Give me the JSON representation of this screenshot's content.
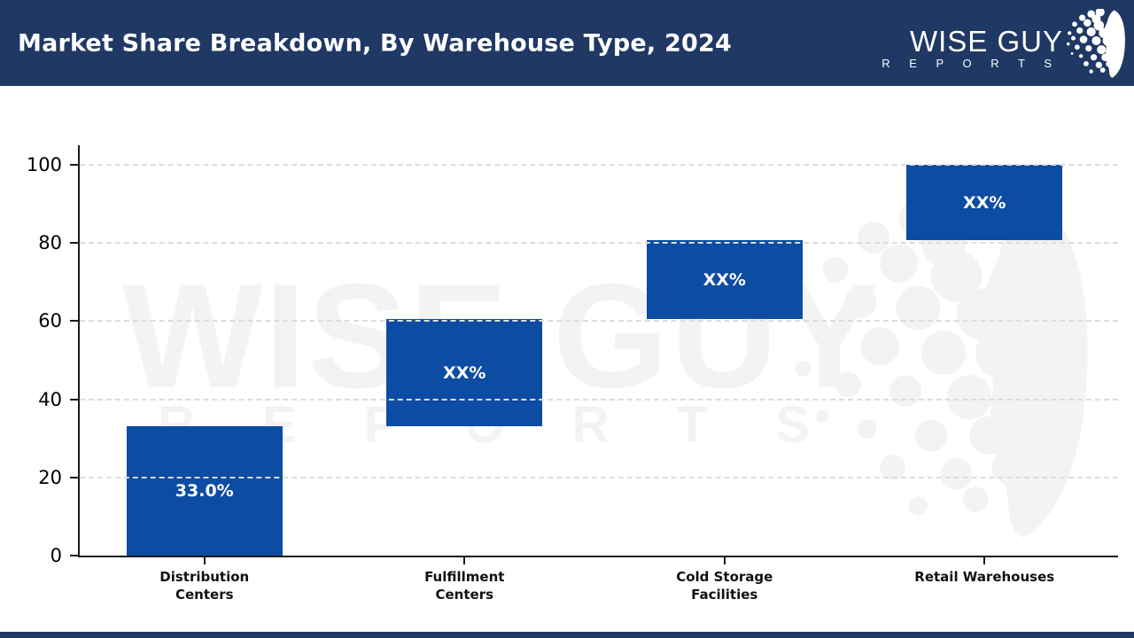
{
  "header": {
    "title": "Market Share Breakdown, By Warehouse Type, 2024",
    "logo": {
      "name": "WISE GUY",
      "sub": "R E P O R T S"
    }
  },
  "watermark": {
    "line1": "WISE GUY",
    "line2": "R E P O R T S"
  },
  "chart_data": {
    "type": "bar",
    "subtype": "waterfall",
    "title": "Market Share Breakdown, By Warehouse Type, 2024",
    "categories": [
      [
        "Distribution",
        "Centers"
      ],
      [
        "Fulfillment",
        "Centers"
      ],
      [
        "Cold Storage",
        "Facilities"
      ],
      [
        "Retail Warehouses"
      ]
    ],
    "segments": [
      {
        "label": "33.0%",
        "start": 0,
        "end": 33
      },
      {
        "label": "XX%",
        "start": 33,
        "end": 60.5
      },
      {
        "label": "XX%",
        "start": 60.5,
        "end": 80.7
      },
      {
        "label": "XX%",
        "start": 80.7,
        "end": 100
      }
    ],
    "yticks": [
      0,
      20,
      40,
      60,
      80,
      100
    ],
    "ylim": [
      0,
      100
    ],
    "xlabel": "",
    "ylabel": "",
    "legend": "none",
    "grid": "horizontal-dashed",
    "bar_color": "#0C4CA3",
    "bar_label_color": "#FFFFFF"
  },
  "colors": {
    "header_bg": "#1F3864",
    "footer_bg": "#1F3864",
    "axis": "#1A1A1A",
    "gridline": "#DCDCDC",
    "watermark": "#F3F3F3",
    "background": "#FFFFFF"
  }
}
